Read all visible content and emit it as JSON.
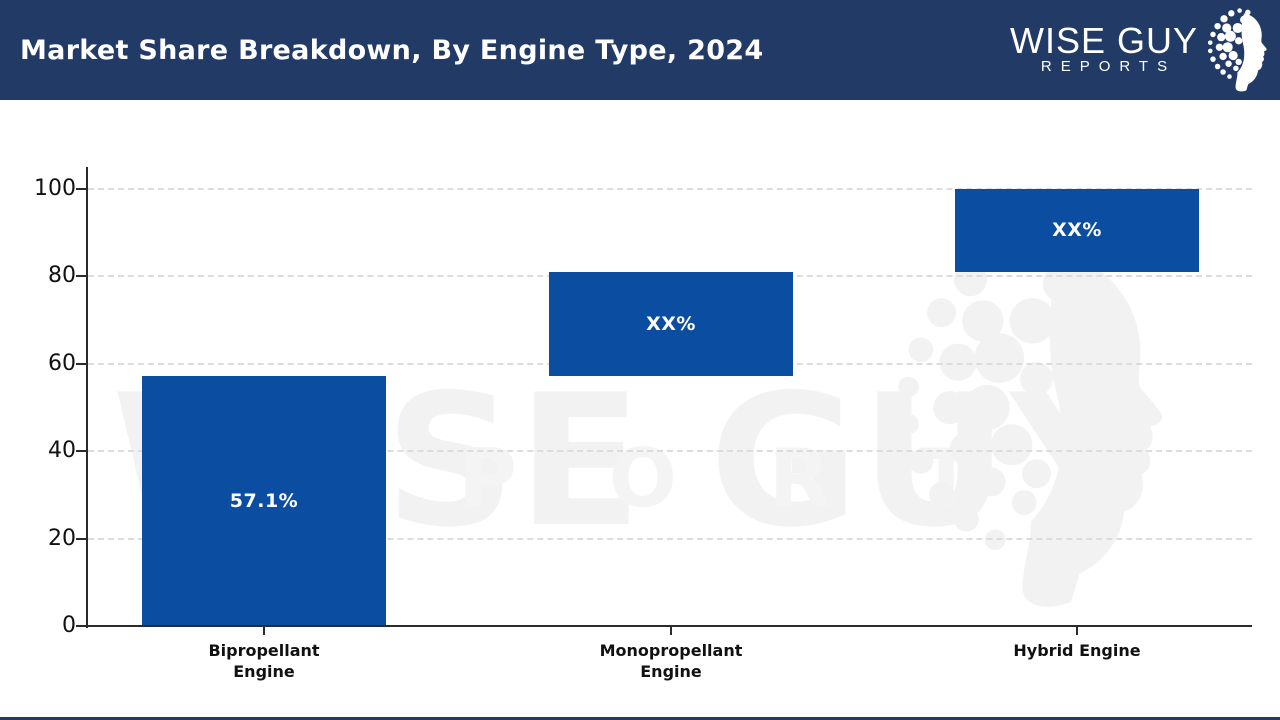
{
  "header": {
    "title": "Market Share Breakdown, By Engine Type, 2024",
    "logo": {
      "line1": "WISE GUY",
      "line2": "REPORTS"
    }
  },
  "watermark": {
    "line1": "WISE GUY",
    "line2": "REPORTS"
  },
  "chart_data": {
    "type": "bar",
    "subtype": "waterfall",
    "title": "Market Share Breakdown, By Engine Type, 2024",
    "xlabel": "",
    "ylabel": "",
    "categories": [
      "Bipropellant Engine",
      "Monopropellant Engine",
      "Hybrid Engine"
    ],
    "category_label_lines": [
      [
        "Bipropellant",
        "Engine"
      ],
      [
        "Monopropellant",
        "Engine"
      ],
      [
        "Hybrid Engine"
      ]
    ],
    "bars": [
      {
        "category": "Bipropellant Engine",
        "start": 0,
        "end": 57.1,
        "label": "57.1%"
      },
      {
        "category": "Monopropellant Engine",
        "start": 57.1,
        "end": 81,
        "label": "XX%"
      },
      {
        "category": "Hybrid Engine",
        "start": 81,
        "end": 100,
        "label": "XX%"
      }
    ],
    "yticks": [
      0,
      20,
      40,
      60,
      80,
      100
    ],
    "ylim": [
      0,
      105
    ],
    "grid": "horizontal-dashed",
    "legend": "none",
    "colors": {
      "bar": "#0b4da1",
      "bar_label": "#ffffff",
      "grid": "#dcdcdc",
      "axis": "#2b2b2b",
      "tick_label": "#111111",
      "header_bg": "#213a66",
      "background": "#ffffff"
    }
  }
}
